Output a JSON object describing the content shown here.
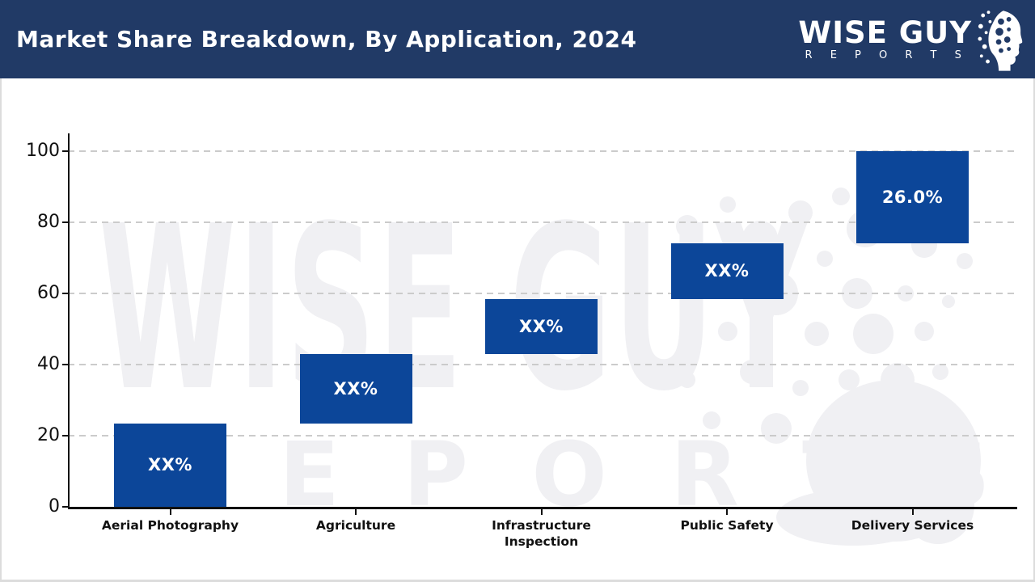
{
  "header": {
    "title": "Market Share Breakdown, By Application, 2024",
    "brand_line1": "WISE GUY",
    "brand_line2": "R E P O R T S"
  },
  "watermark": {
    "line1": "WISE GUY",
    "line2": "R E P O R T S"
  },
  "colors": {
    "header_bg": "#213a66",
    "bar_fill": "#0c4699",
    "bar_label": "#ffffff",
    "gridline": "#cbcbcb",
    "axis": "#111111",
    "watermark": "#f0f0f3",
    "page_border": "#dcdcdc"
  },
  "chart_data": {
    "type": "bar",
    "variant": "waterfall-floating-segments",
    "title": "Market Share Breakdown, By Application, 2024",
    "categories": [
      "Aerial Photography",
      "Agriculture",
      "Infrastructure Inspection",
      "Public Safety",
      "Delivery Services"
    ],
    "segments": [
      {
        "category": "Aerial Photography",
        "start": 0,
        "end": 23.5,
        "label": "XX%"
      },
      {
        "category": "Agriculture",
        "start": 23.5,
        "end": 43,
        "label": "XX%"
      },
      {
        "category": "Infrastructure Inspection",
        "start": 43,
        "end": 58.5,
        "label": "XX%"
      },
      {
        "category": "Public Safety",
        "start": 58.5,
        "end": 74,
        "label": "XX%"
      },
      {
        "category": "Delivery Services",
        "start": 74,
        "end": 100,
        "label": "26.0%"
      }
    ],
    "xlabel": "",
    "ylabel": "",
    "ylim": [
      0,
      105
    ],
    "yticks": [
      0,
      20,
      40,
      60,
      80,
      100
    ],
    "grid": "horizontal-dashed",
    "legend": "none"
  }
}
